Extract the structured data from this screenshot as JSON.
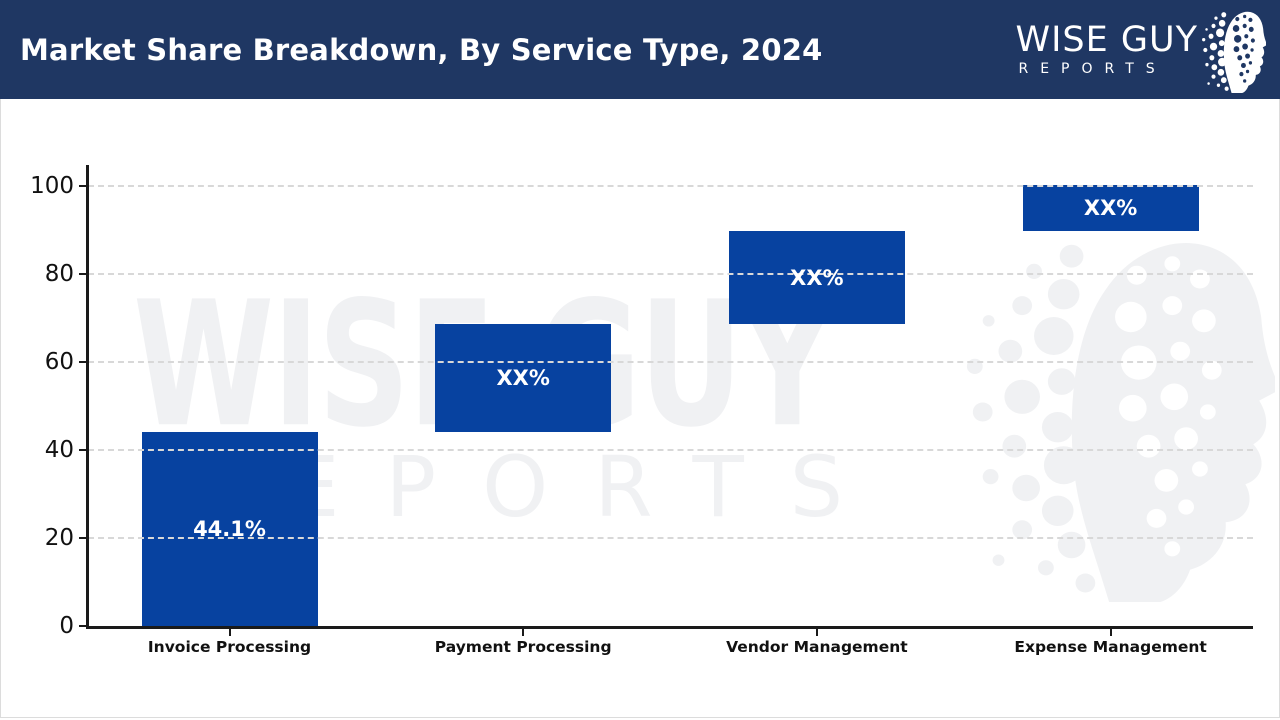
{
  "header": {
    "title": "Market Share Breakdown, By Service Type, 2024",
    "logo": {
      "line1": "WISE GUY",
      "line2": "REPORTS"
    }
  },
  "watermark": {
    "line1": "WISE GUY",
    "line2": "REPORTS"
  },
  "colors": {
    "header_bg": "#1f3763",
    "title_text": "#ffffff",
    "bar": "#0742a0",
    "bar_label": "#ffffff",
    "grid": "#d8d8d8",
    "axis": "#1a1a1a",
    "tick_text": "#111111",
    "watermark": "#f0f1f3",
    "frame_border": "#dcdcdc"
  },
  "chart_data": {
    "type": "bar",
    "variant": "waterfall (floating cumulative segments summing to 100%)",
    "title": "Market Share Breakdown, By Service Type, 2024",
    "categories": [
      "Invoice Processing",
      "Payment Processing",
      "Vendor Management",
      "Expense Management"
    ],
    "segments": [
      {
        "category": "Invoice Processing",
        "start": 0,
        "end": 44.1,
        "value_label": "44.1%"
      },
      {
        "category": "Payment Processing",
        "start": 44.1,
        "end": 68.6,
        "value_label": "XX%"
      },
      {
        "category": "Vendor Management",
        "start": 68.6,
        "end": 89.8,
        "value_label": "XX%"
      },
      {
        "category": "Expense Management",
        "start": 89.8,
        "end": 100.2,
        "value_label": "XX%"
      }
    ],
    "y_ticks": [
      0,
      20,
      40,
      60,
      80,
      100
    ],
    "y_tick_labels": [
      "0",
      "20",
      "40",
      "60",
      "80",
      "100"
    ],
    "ylim": [
      0,
      105
    ],
    "xlabel": "",
    "ylabel": "",
    "grid": "horizontal dashed, drawn above bars",
    "legend": "none"
  }
}
